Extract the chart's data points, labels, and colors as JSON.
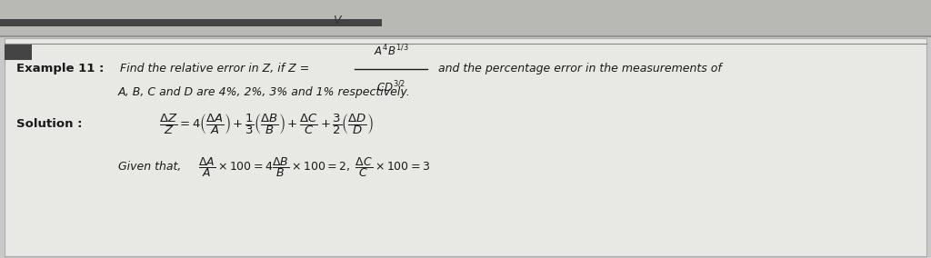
{
  "bg_color": "#c8c8c8",
  "page_color": "#e8e8e4",
  "box_bg": "#e4e4e0",
  "text_color": "#1a1a1a",
  "top_strip_color": "#7a7a7a",
  "dark_tab_color": "#444444",
  "header_text": "V",
  "example_bold": "Example 11 :",
  "example_text": " Find the relative error in Z, if Z = ",
  "formula_num": "A^4B^{1/3}",
  "formula_den": "CD^{3/2}",
  "after_formula": " and the percentage error in the measurements of",
  "line2": "A, B, C and D are 4%, 2%, 3% and 1% respectively.",
  "sol_label": "Solution :",
  "sol_eq": "\\dfrac{\\Delta Z}{Z} = 4\\left(\\dfrac{\\Delta A}{A}\\right) + \\dfrac{1}{3}\\left(\\dfrac{\\Delta B}{B}\\right) + \\dfrac{\\Delta C}{C} + \\dfrac{3}{2}\\left(\\dfrac{\\Delta D}{D}\\right)",
  "given_prefix": "Given that, ",
  "given_eq": "\\dfrac{\\Delta A}{A}\\times 100 = 4\\dfrac{\\Delta B}{B}\\times 100 = 2,\\ \\dfrac{\\Delta C}{C}\\times 100 = 3"
}
